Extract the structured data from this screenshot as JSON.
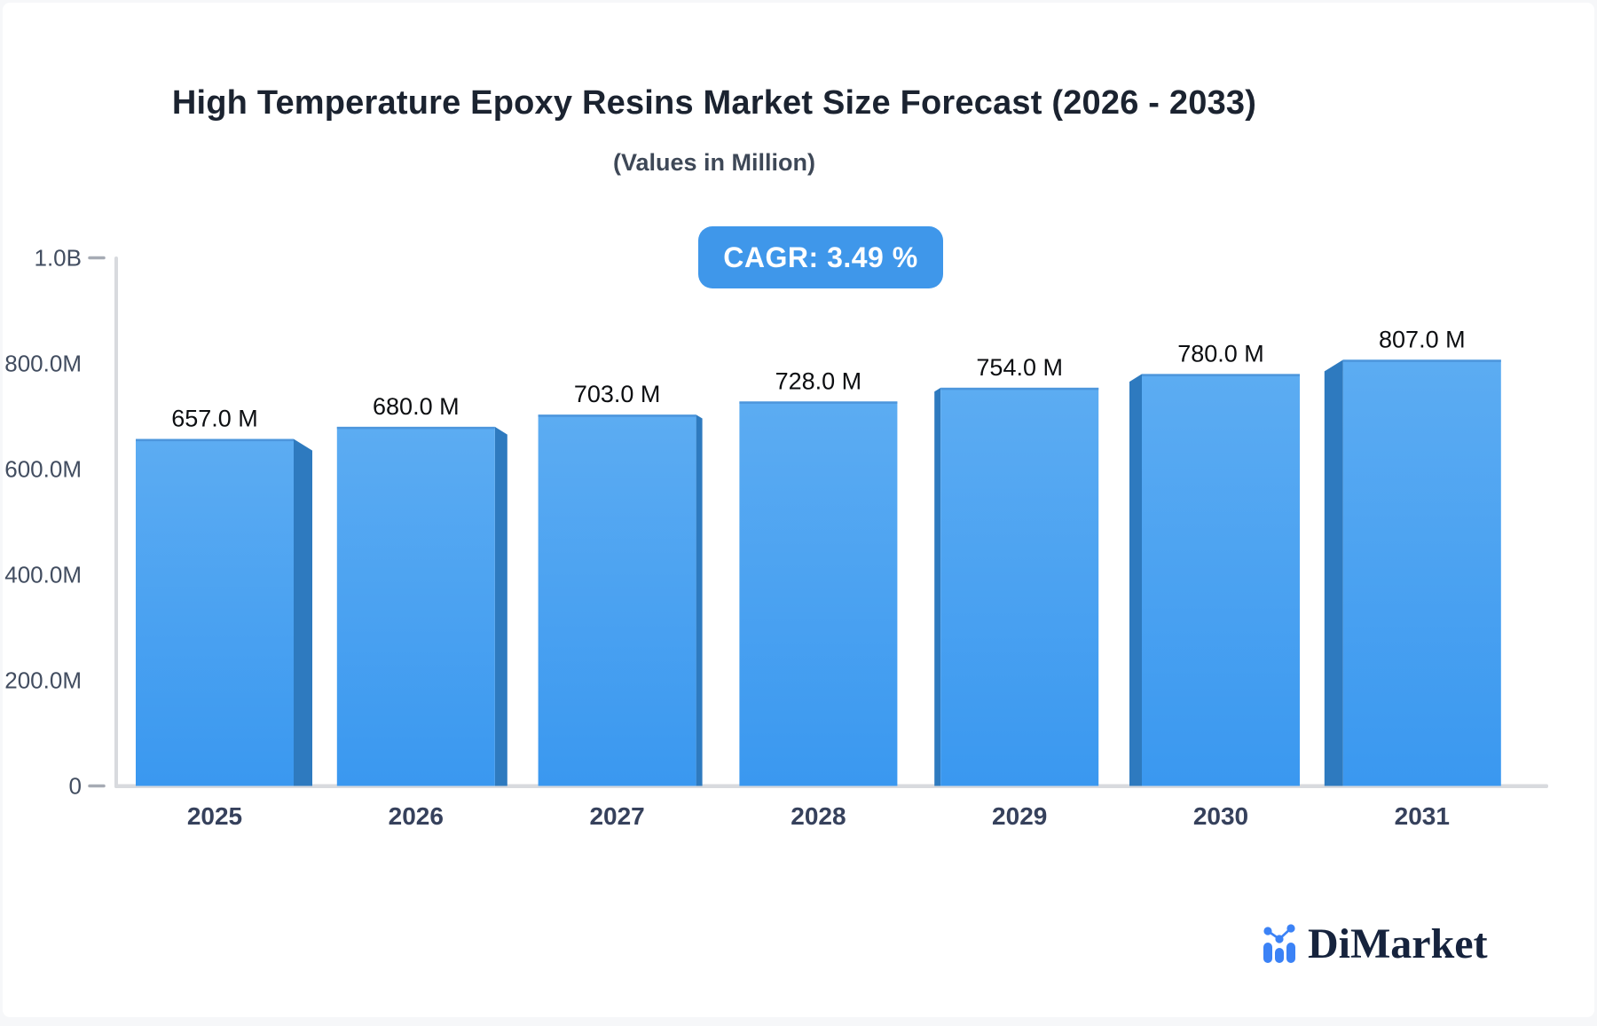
{
  "header": {
    "title": "High Temperature Epoxy Resins Market Size Forecast (2026 - 2033)",
    "subtitle": "(Values in Million)",
    "cagr_label": "CAGR: 3.49 %"
  },
  "chart_data": {
    "type": "bar",
    "effect": "3d-perspective-bars",
    "categories": [
      "2025",
      "2026",
      "2027",
      "2028",
      "2029",
      "2030",
      "2031"
    ],
    "values": [
      657,
      680,
      703,
      728,
      754,
      780,
      807
    ],
    "value_labels": [
      "657.0 M",
      "680.0 M",
      "703.0 M",
      "728.0 M",
      "754.0 M",
      "780.0 M",
      "807.0 M"
    ],
    "y_tick_values": [
      1000,
      800,
      600,
      400,
      200,
      0
    ],
    "y_tick_labels": [
      "1.0B",
      "800.0M",
      "600.0M",
      "400.0M",
      "200.0M",
      "0"
    ],
    "ylim": [
      0,
      1000
    ],
    "grid": "off",
    "legend": "none",
    "colors": {
      "bar_face_top": "#5cacf2",
      "bar_face_bottom": "#3a98f0",
      "bar_side": "#2e7abf",
      "bar_top_edge": "#4a92d8",
      "axis_line": "#d8dade",
      "tick_dash": "#a6abb4",
      "y_label": "#424d60",
      "x_label": "#36415c",
      "value_label": "#0c0e11"
    }
  },
  "brand": {
    "name": "DiMarket",
    "icon": "mini-bar-chart-icon",
    "icon_color": "#3b82f6",
    "text_color": "#16233d"
  }
}
